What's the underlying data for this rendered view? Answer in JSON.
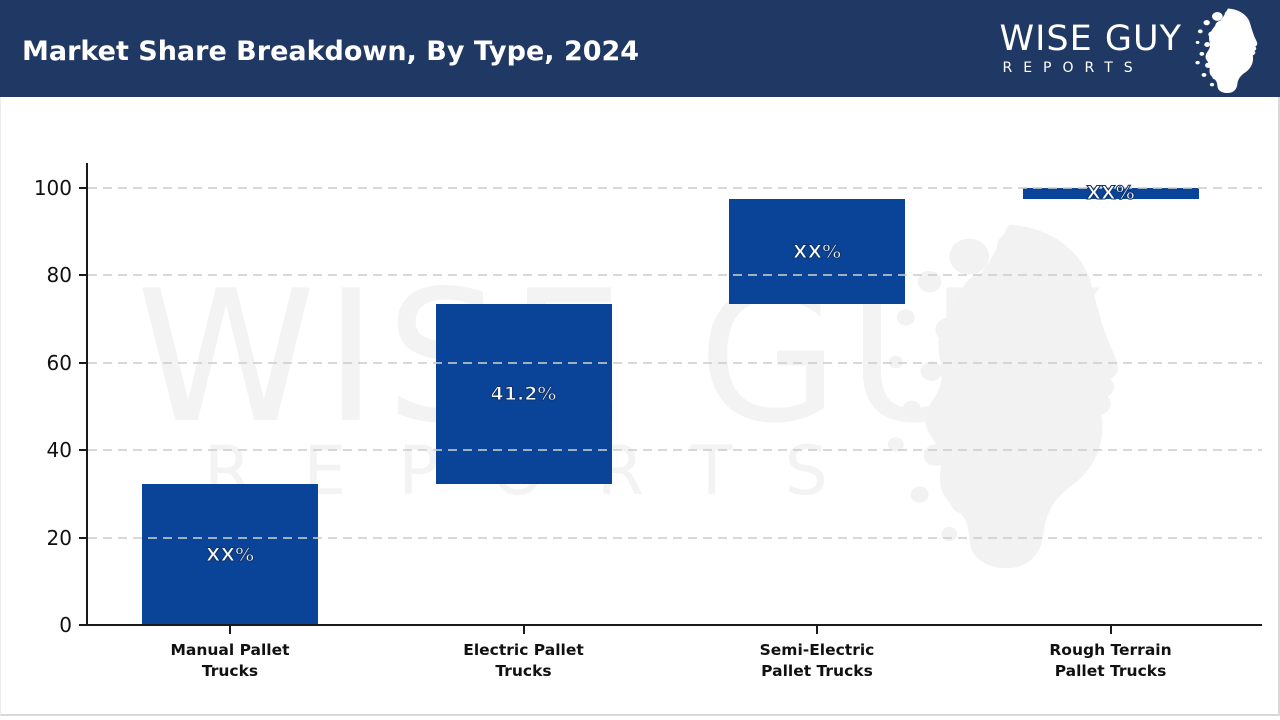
{
  "header": {
    "title": "Market Share Breakdown, By Type, 2024",
    "bg_color": "#203864",
    "logo": {
      "line1": "WISE GUY",
      "line2": "REPORTS"
    }
  },
  "watermark": {
    "line1": "WISE GUY",
    "line2": "REPORTS",
    "color": "#f3f3f3"
  },
  "chart_data": {
    "type": "bar",
    "subtype": "waterfall",
    "title": "Market Share Breakdown, By Type, 2024",
    "categories": [
      [
        "Manual Pallet",
        "Trucks"
      ],
      [
        "Electric Pallet",
        "Trucks"
      ],
      [
        "Semi-Electric",
        "Pallet Trucks"
      ],
      [
        "Rough Terrain",
        "Pallet Trucks"
      ]
    ],
    "segments": [
      {
        "start": 0,
        "end": 32.2,
        "value": 32.2,
        "label": "XX%"
      },
      {
        "start": 32.2,
        "end": 73.4,
        "value": 41.2,
        "label": "41.2%"
      },
      {
        "start": 73.4,
        "end": 97.3,
        "value": 23.9,
        "label": "XX%"
      },
      {
        "start": 97.3,
        "end": 100,
        "value": 2.7,
        "label": "XX%"
      }
    ],
    "yticks": [
      0,
      20,
      40,
      60,
      80,
      100
    ],
    "ylim": [
      0,
      100
    ],
    "grid": "horizontal dashed",
    "legend": "none",
    "bar_color": "#0a4499",
    "grid_color": "#d9d9d9",
    "axis_color": "#1a1a1a",
    "label_color_on_bar": "#ffffff"
  }
}
